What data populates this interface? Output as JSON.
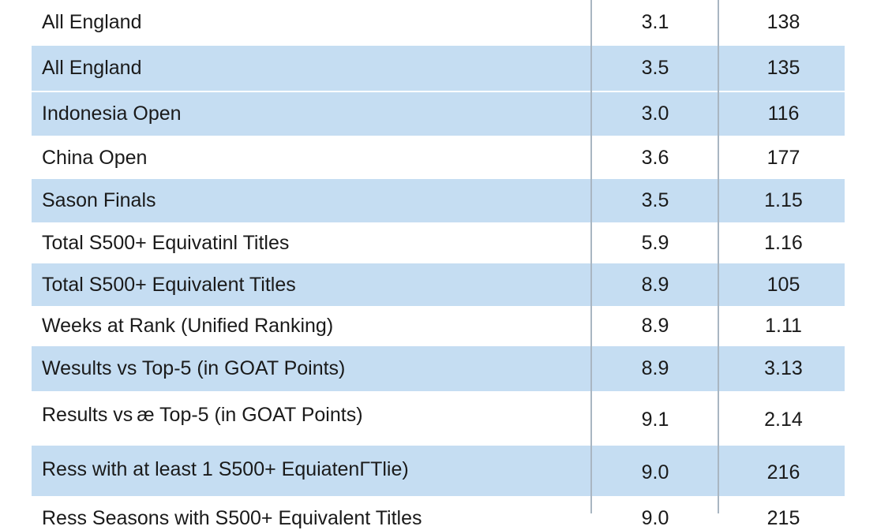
{
  "table": {
    "rows": [
      {
        "name": "All England",
        "v1": "3.1",
        "v2": "138",
        "shaded": false
      },
      {
        "name": "All England",
        "v1": "3.5",
        "v2": "135",
        "shaded": true
      },
      {
        "name": "Indonesia Open",
        "v1": "3.0",
        "v2": "116",
        "shaded": true
      },
      {
        "name": "China Open",
        "v1": "3.6",
        "v2": "177",
        "shaded": false
      },
      {
        "name": "Sason Finals",
        "v1": "3.5",
        "v2": "1.15",
        "shaded": true
      },
      {
        "name": "Total S500+ Equivatinl Titles",
        "v1": "5.9",
        "v2": "1.16",
        "shaded": false
      },
      {
        "name": "Total S500+ Equivalent Titles",
        "v1": "8.9",
        "v2": "105",
        "shaded": true
      },
      {
        "name": "Weeks at Rank (Unified Ranking)",
        "v1": "8.9",
        "v2": "1.11",
        "shaded": false
      },
      {
        "name": "Wesults vs Top-5 (in GOAT Points)",
        "v1": "8.9",
        "v2": "3.13",
        "shaded": true
      },
      {
        "name": "Results vs æ Top-5 (in GOAT Points)",
        "v1": "9.1",
        "v2": "2.14",
        "shaded": false
      },
      {
        "name": "Ress with at least 1 S500+ EquiatenΓΤlie)",
        "v1": "9.0",
        "v2": "216",
        "shaded": true
      }
    ],
    "partial_row": {
      "name": "Ress Seasons with S500+ Equivalent Titles",
      "v1": "9.0",
      "v2": "215"
    }
  }
}
